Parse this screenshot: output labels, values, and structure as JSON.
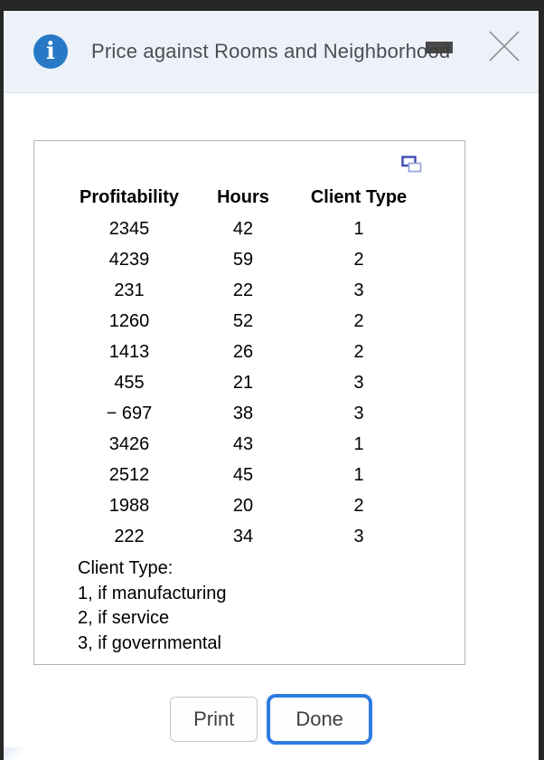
{
  "dialog": {
    "title_full": "Price against Rooms and Neighborhood",
    "title_main": "Price against Rooms and Neighborho",
    "title_obscured_part": "od",
    "info_icon_glyph": "i"
  },
  "table": {
    "headers": [
      "Profitability",
      "Hours",
      "Client Type"
    ],
    "rows": [
      [
        "2345",
        "42",
        "1"
      ],
      [
        "4239",
        "59",
        "2"
      ],
      [
        "231",
        "22",
        "3"
      ],
      [
        "1260",
        "52",
        "2"
      ],
      [
        "1413",
        "26",
        "2"
      ],
      [
        "455",
        "21",
        "3"
      ],
      [
        "− 697",
        "38",
        "3"
      ],
      [
        "3426",
        "43",
        "1"
      ],
      [
        "2512",
        "45",
        "1"
      ],
      [
        "1988",
        "20",
        "2"
      ],
      [
        "222",
        "34",
        "3"
      ]
    ],
    "legend_lines": [
      "Client Type:",
      "1, if manufacturing",
      "2, if service",
      "3, if governmental"
    ]
  },
  "buttons": {
    "print_label": "Print",
    "done_label": "Done"
  },
  "colors": {
    "header_bg": "#edf2f9",
    "info_icon_blue": "#2779c6",
    "done_border_blue": "#2e7ce0",
    "frame_dark": "#272727",
    "copy_icon_dark": "#3c4db0",
    "copy_icon_light": "#9aa7de"
  }
}
